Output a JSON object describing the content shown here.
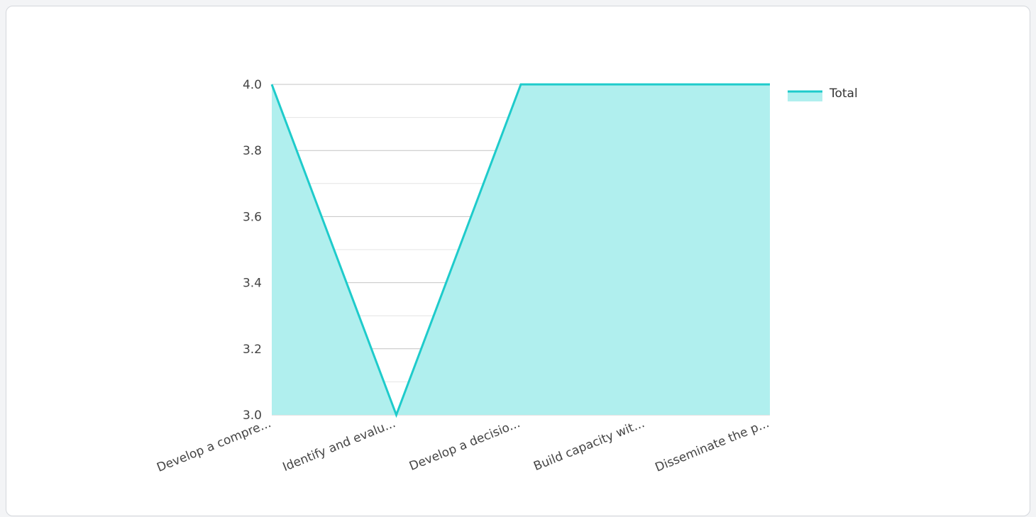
{
  "chart_data": {
    "type": "area",
    "categories": [
      "Develop a compre...",
      "Identify and evalu...",
      "Develop a decisio...",
      "Build capacity wit...",
      "Disseminate the p..."
    ],
    "series": [
      {
        "name": "Total",
        "values": [
          4.0,
          3.0,
          4.0,
          4.0,
          4.0
        ]
      }
    ],
    "ylim": [
      3.0,
      4.0
    ],
    "yticks": [
      "3.0",
      "3.2",
      "3.4",
      "3.6",
      "3.8",
      "4.0"
    ],
    "ytick_values": [
      3.0,
      3.2,
      3.4,
      3.6,
      3.8,
      4.0
    ],
    "grid": true,
    "legend_position": "right",
    "colors": {
      "line": "#1ecbcb",
      "fill": "#b0efee",
      "grid_major": "#c4c4c4",
      "grid_minor": "#e4e4e4",
      "baseline": "#c4c4c4"
    }
  }
}
